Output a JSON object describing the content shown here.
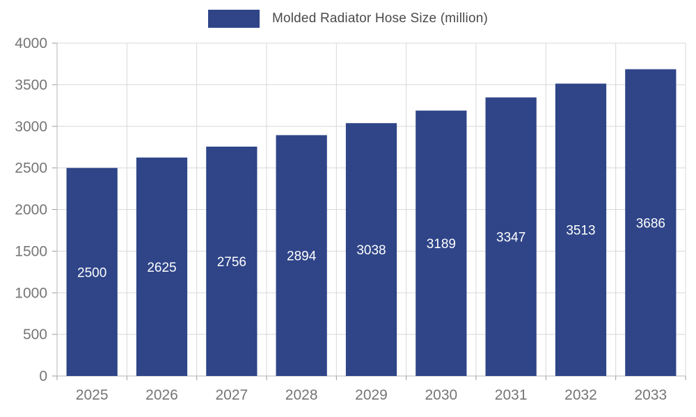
{
  "colors": {
    "bar": "#2f4588",
    "grid": "#d8d8d8",
    "axis": "#b5b5b5",
    "tick": "#9a9a9a",
    "tick_label": "#757575",
    "legend_text": "#4a4a4a",
    "background": "#ffffff",
    "bar_label": "#ffffff"
  },
  "legend": {
    "label": "Molded Radiator Hose Size (million)"
  },
  "chart_data": {
    "type": "bar",
    "title": "Molded Radiator Hose Size (million)",
    "categories": [
      "2025",
      "2026",
      "2027",
      "2028",
      "2029",
      "2030",
      "2031",
      "2032",
      "2033"
    ],
    "values": [
      2500,
      2625,
      2756,
      2894,
      3038,
      3189,
      3347,
      3513,
      3686
    ],
    "xlabel": "",
    "ylabel": "",
    "ylim": [
      0,
      4000
    ],
    "yticks": [
      0,
      500,
      1000,
      1500,
      2000,
      2500,
      3000,
      3500,
      4000
    ],
    "grid": true,
    "legend_position": "top",
    "data_labels": "inside-middle"
  }
}
